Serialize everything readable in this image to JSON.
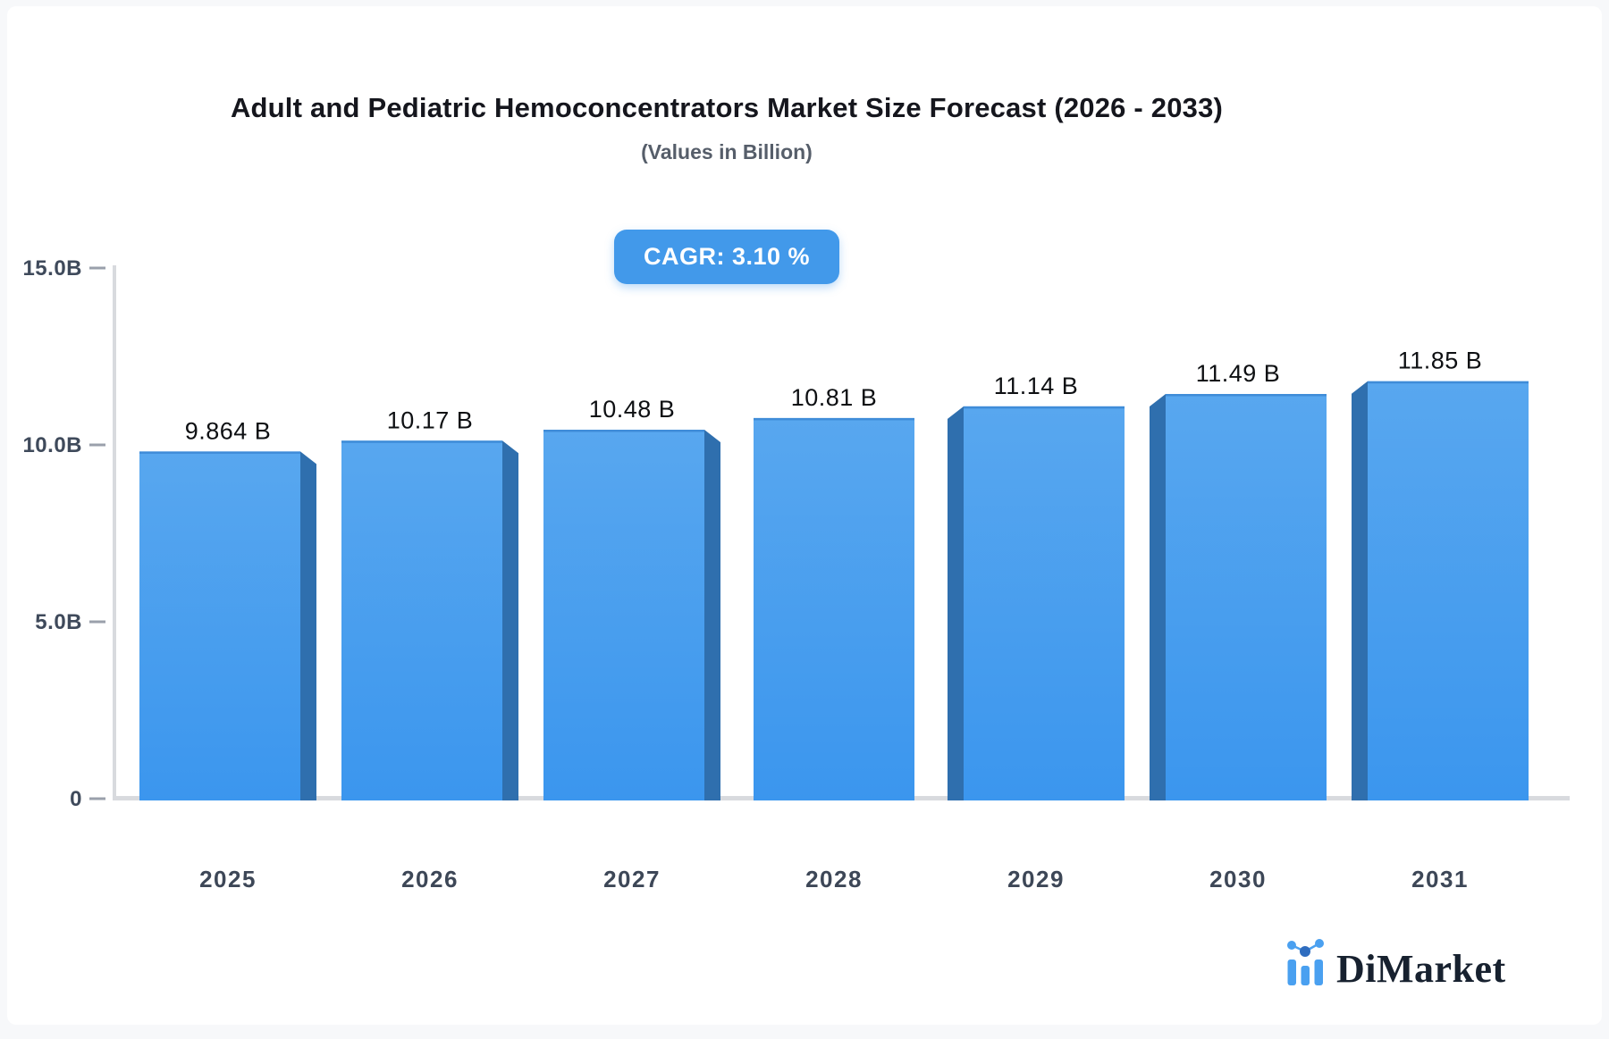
{
  "page": {
    "background": "#f7f8fa",
    "card_background": "#ffffff"
  },
  "header": {
    "title": "Adult and Pediatric Hemoconcentrators Market Size Forecast (2026 - 2033)",
    "subtitle": "(Values in Billion)"
  },
  "badge": {
    "label": "CAGR: 3.10 %",
    "background": "#4299ea",
    "text_color": "#ffffff"
  },
  "logo": {
    "text": "DiMarket",
    "icon": "bar-chart-with-dots-icon",
    "text_color": "#17212f",
    "icon_bar_color": "#4aa0f0",
    "icon_dot_accent": "#2f6dbf"
  },
  "chart_data": {
    "type": "bar",
    "title": "Adult and Pediatric Hemoconcentrators Market Size Forecast (2026 - 2033)",
    "subtitle": "(Values in Billion)",
    "cagr_label": "CAGR: 3.10 %",
    "categories": [
      "2025",
      "2026",
      "2027",
      "2028",
      "2029",
      "2030",
      "2031"
    ],
    "values": [
      9.864,
      10.17,
      10.48,
      10.81,
      11.14,
      11.49,
      11.85
    ],
    "value_labels": [
      "9.864 B",
      "10.17 B",
      "10.48 B",
      "10.81 B",
      "11.14 B",
      "11.49 B",
      "11.85 B"
    ],
    "xlabel": "",
    "ylabel": "",
    "ylim": [
      0,
      15
    ],
    "yticks": [
      {
        "label": "15.0B",
        "value": 15
      },
      {
        "label": "10.0B",
        "value": 10
      },
      {
        "label": "5.0B",
        "value": 5
      },
      {
        "label": "0",
        "value": 0
      }
    ],
    "grid": false,
    "legend": false,
    "style": {
      "bar_face_top": "#58a7ef",
      "bar_face_bottom": "#3b96ee",
      "bar_side": "#2f6fae",
      "bar_top_edge": "#3f8cd8",
      "axis_color": "#d8dade",
      "tick_color": "#9aa0ab",
      "tick_label_color": "#3f4a5b",
      "category_label_color": "#3d4757",
      "value_label_color": "#0e1013"
    }
  }
}
